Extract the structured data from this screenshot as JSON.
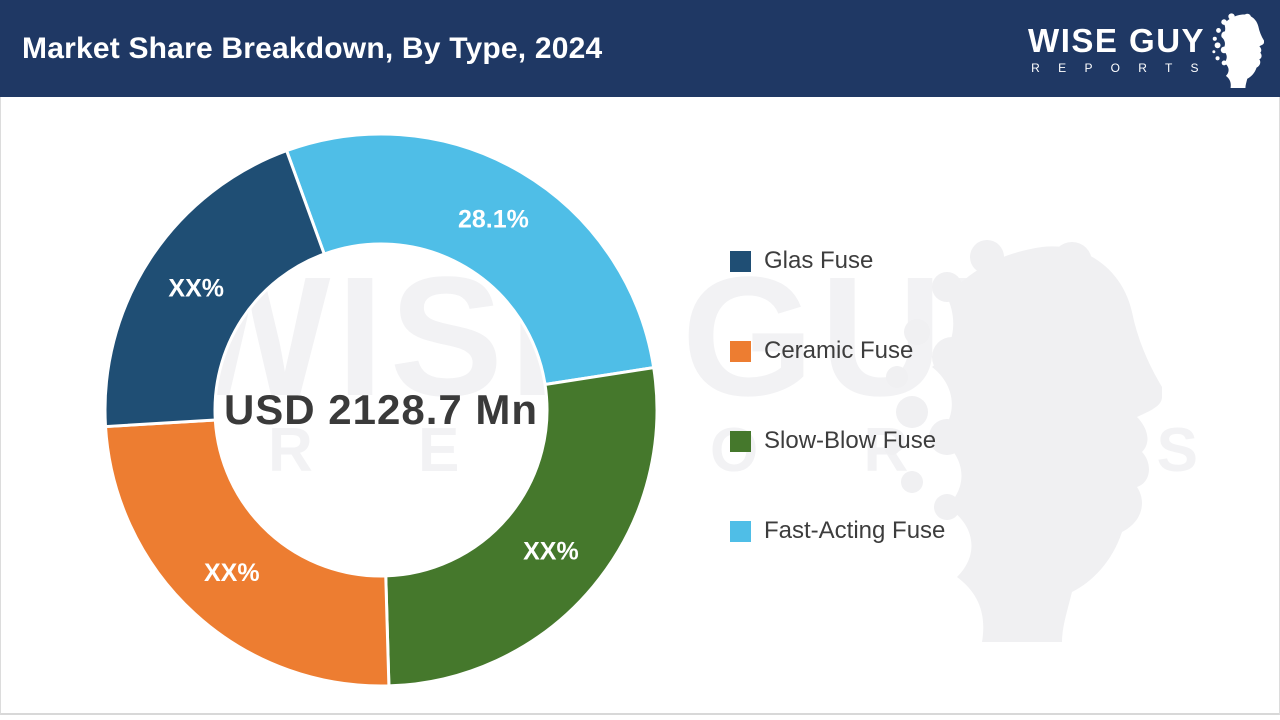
{
  "header": {
    "title": "Market Share Breakdown, By Type, 2024",
    "bg_color": "#1F3864",
    "text_color": "#FFFFFF"
  },
  "logo": {
    "line1": "WISE GUY",
    "line2": "R E P O R T S"
  },
  "watermark": {
    "line1": "WISE GUY",
    "line2": "R E P O R T S"
  },
  "chart_data": {
    "type": "pie",
    "subtype": "donut",
    "title": "Market Share Breakdown, By Type, 2024",
    "center_label": "USD 2128.7 Mn",
    "start_angle_deg_from_top": -20,
    "legend_position": "right",
    "segments": [
      {
        "label": "Glas Fuse",
        "color": "#1F4E74",
        "display_value": "XX%",
        "share_pct": 20.4,
        "value_known": false
      },
      {
        "label": "Ceramic Fuse",
        "color": "#ED7D31",
        "display_value": "XX%",
        "share_pct": 24.5,
        "value_known": false
      },
      {
        "label": "Slow-Blow Fuse",
        "color": "#45782C",
        "display_value": "XX%",
        "share_pct": 27.0,
        "value_known": false
      },
      {
        "label": "Fast-Acting Fuse",
        "color": "#4FBEE7",
        "display_value": "28.1%",
        "share_pct": 28.1,
        "value_known": true
      }
    ],
    "draw_order": [
      3,
      2,
      1,
      0
    ]
  },
  "colors": {
    "center_text": "#3A3A3A",
    "legend_text": "#3D3D3D",
    "segment_gap": "#FFFFFF",
    "watermark": "#F2F2F4",
    "frame_border": "#D8D8D8"
  }
}
